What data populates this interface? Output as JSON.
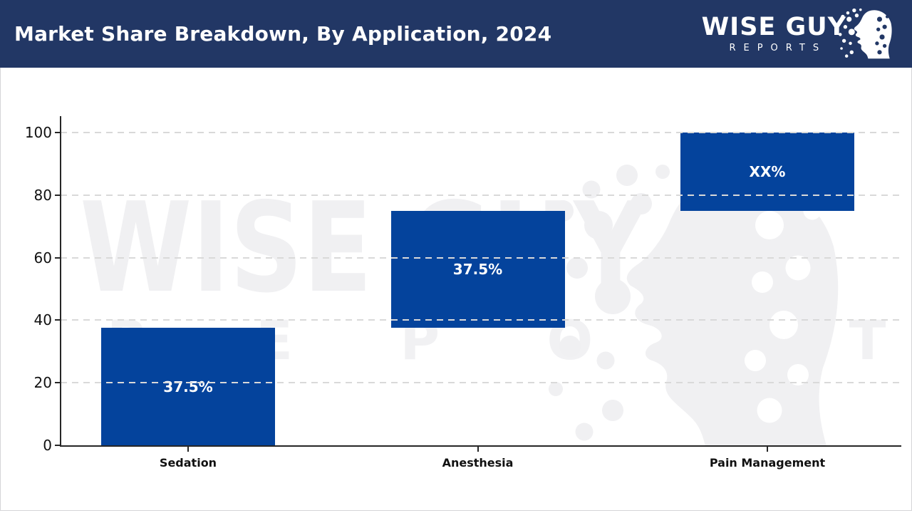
{
  "header": {
    "title": "Market Share Breakdown, By Application, 2024",
    "bg_color": "#223765",
    "logo": {
      "primary": "WISE GUY",
      "secondary": "REPORTS",
      "face_icon": "dotted-face-profile"
    }
  },
  "watermark": {
    "line1": "WISE GUY",
    "line2": "R E P O R T S"
  },
  "chart_data": {
    "type": "bar",
    "variant": "floating-segment-steps",
    "title": "Market Share Breakdown, By Application, 2024",
    "categories": [
      "Sedation",
      "Anesthesia",
      "Pain Management"
    ],
    "segments": [
      {
        "category": "Sedation",
        "start": 0,
        "end": 37.5,
        "label": "37.5%"
      },
      {
        "category": "Anesthesia",
        "start": 37.5,
        "end": 75,
        "label": "37.5%"
      },
      {
        "category": "Pain Management",
        "start": 75,
        "end": 100,
        "label": "XX%"
      }
    ],
    "ylim": [
      0,
      100
    ],
    "yticks": [
      0,
      20,
      40,
      60,
      80,
      100
    ],
    "grid": "horizontal-dashed",
    "legend": "none",
    "bar_color": "#04439c",
    "bar_label_color": "#ffffff",
    "axis_color": "#262626",
    "grid_color": "#d9d9d9",
    "watermark_color": "#f0f0f2"
  }
}
